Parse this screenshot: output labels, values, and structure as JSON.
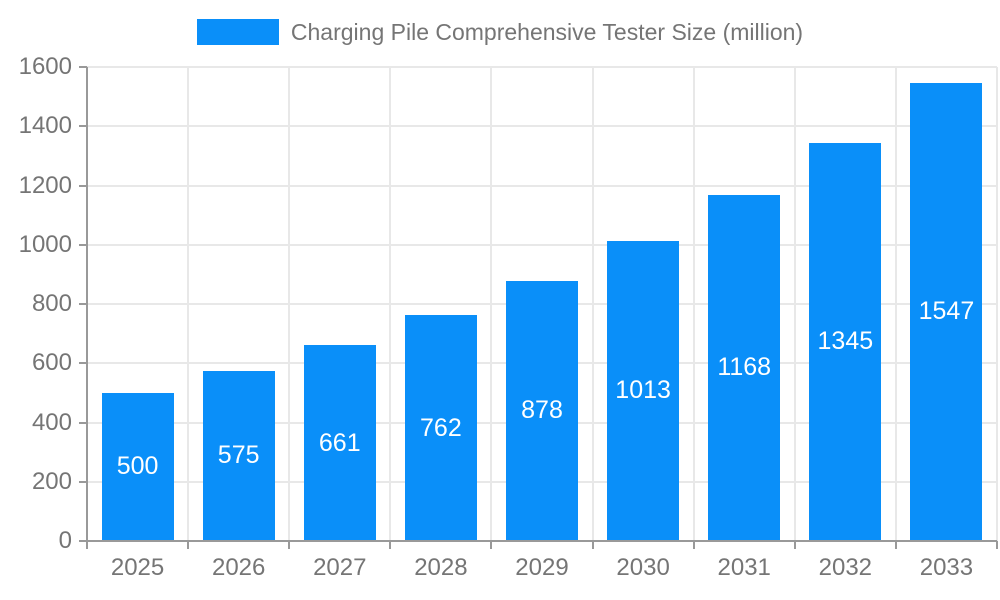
{
  "legend": {
    "label": "Charging Pile Comprehensive Tester Size (million)"
  },
  "colors": {
    "bar": "#0A8FF9",
    "grid": "#e8e8e8",
    "axis": "#999999",
    "tick_text": "#757575",
    "value_text": "#ffffff",
    "background": "#ffffff"
  },
  "chart_data": {
    "type": "bar",
    "title": "Charging Pile Comprehensive Tester Size (million)",
    "categories": [
      "2025",
      "2026",
      "2027",
      "2028",
      "2029",
      "2030",
      "2031",
      "2032",
      "2033"
    ],
    "values": [
      500,
      575,
      661,
      762,
      878,
      1013,
      1168,
      1345,
      1547
    ],
    "xlabel": "",
    "ylabel": "",
    "ylim": [
      0,
      1600
    ],
    "yticks": [
      0,
      200,
      400,
      600,
      800,
      1000,
      1200,
      1400,
      1600
    ],
    "grid": true,
    "legend_position": "top",
    "value_labels": "centered-inside-bars"
  }
}
